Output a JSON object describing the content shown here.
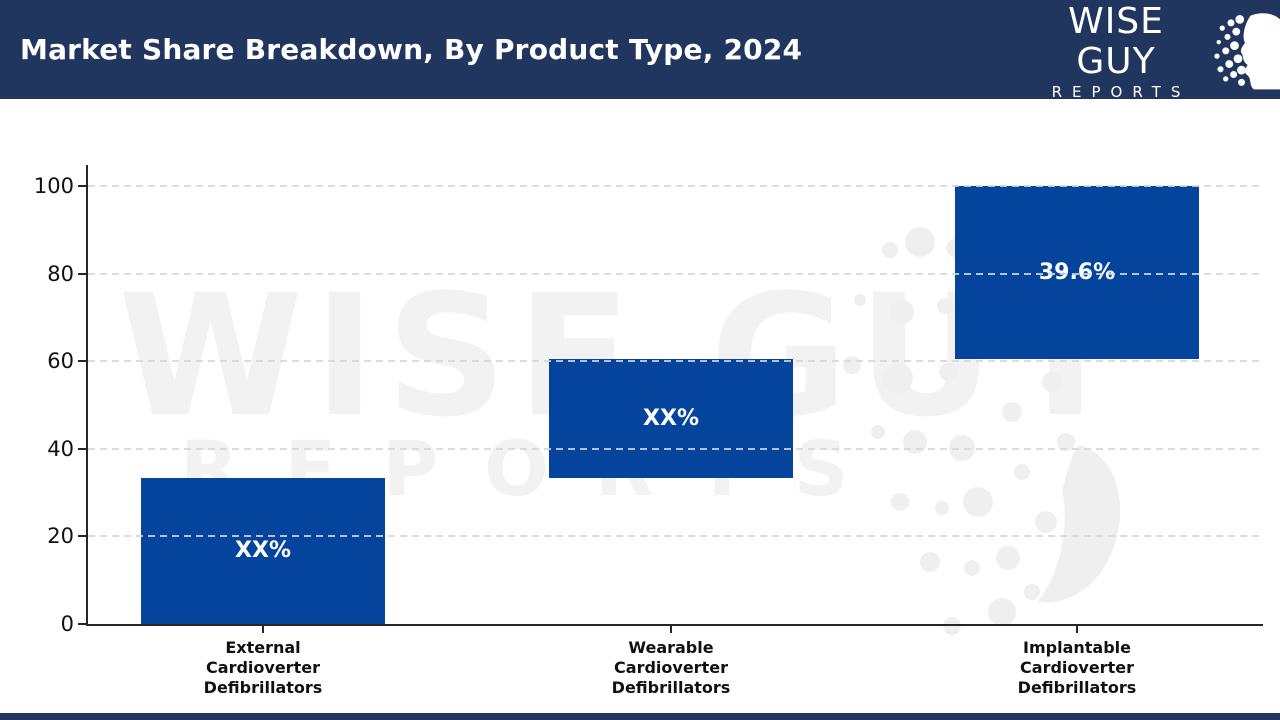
{
  "header": {
    "title": "Market Share Breakdown, By Product Type, 2024",
    "bg_color": "#21365F",
    "logo": {
      "line1": "WISE GUY",
      "line2": "REPORTS"
    }
  },
  "watermark": {
    "line1": "WISE GUY",
    "line2": "REPORTS"
  },
  "footer": {
    "bg_color": "#21365F"
  },
  "chart_data": {
    "type": "bar",
    "subtype": "floating_segment_waterfall",
    "title": "Market Share Breakdown, By Product Type, 2024",
    "categories": [
      [
        "External",
        "Cardioverter",
        "Defibrillators"
      ],
      [
        "Wearable",
        "Cardioverter",
        "Defibrillators"
      ],
      [
        "Implantable",
        "Cardioverter",
        "Defibrillators"
      ]
    ],
    "segments": [
      {
        "category": "External Cardioverter Defibrillators",
        "start": 0,
        "end": 33.4,
        "label": "XX%"
      },
      {
        "category": "Wearable Cardioverter Defibrillators",
        "start": 33.4,
        "end": 60.4,
        "label": "XX%"
      },
      {
        "category": "Implantable Cardioverter Defibrillators",
        "start": 60.4,
        "end": 100,
        "label": "39.6%"
      }
    ],
    "bar_color": "#04449C",
    "label_color": "#FFFFFF",
    "ylim": [
      0,
      100
    ],
    "yticks": [
      0,
      20,
      40,
      60,
      80,
      100
    ],
    "grid": {
      "axis": "y",
      "style": "dashed",
      "color": "#DCDCDC"
    },
    "axis_color": "#262626",
    "legend": "none"
  }
}
